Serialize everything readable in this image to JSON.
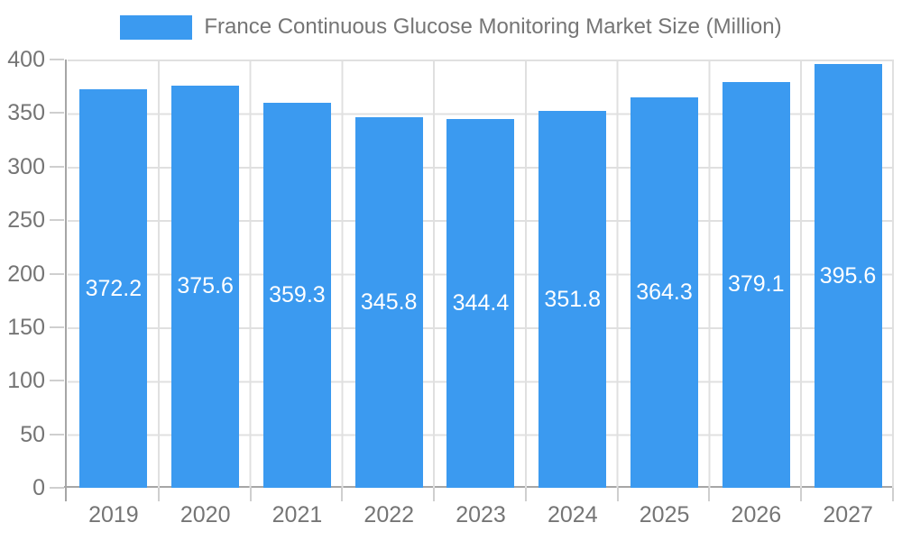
{
  "chart_data": {
    "type": "bar",
    "title": "France Continuous Glucose Monitoring Market Size (Million)",
    "categories": [
      "2019",
      "2020",
      "2021",
      "2022",
      "2023",
      "2024",
      "2025",
      "2026",
      "2027"
    ],
    "series": [
      {
        "name": "France Continuous Glucose Monitoring Market Size (Million)",
        "values": [
          372.2,
          375.6,
          359.3,
          345.8,
          344.4,
          351.8,
          364.3,
          379.1,
          395.6
        ]
      }
    ],
    "bar_labels": [
      "372.2",
      "375.6",
      "359.3",
      "345.8",
      "344.4",
      "351.8",
      "364.3",
      "379.1",
      "395.6"
    ],
    "xlabel": "",
    "ylabel": "",
    "ylim": [
      0,
      400
    ],
    "ytick_step": 50,
    "yticks": [
      400,
      350,
      300,
      250,
      200,
      150,
      100,
      50,
      0
    ],
    "grid": true,
    "legend_position": "top",
    "bar_label_decimals": 1,
    "colors": {
      "bar": "#3b9af0",
      "bar_label": "#ffffff",
      "axis_line": "#a6a6a6",
      "gridline": "#e0e0e0",
      "tick_mark": "#cfcfcf",
      "text": "#757575",
      "background": "#ffffff"
    }
  }
}
